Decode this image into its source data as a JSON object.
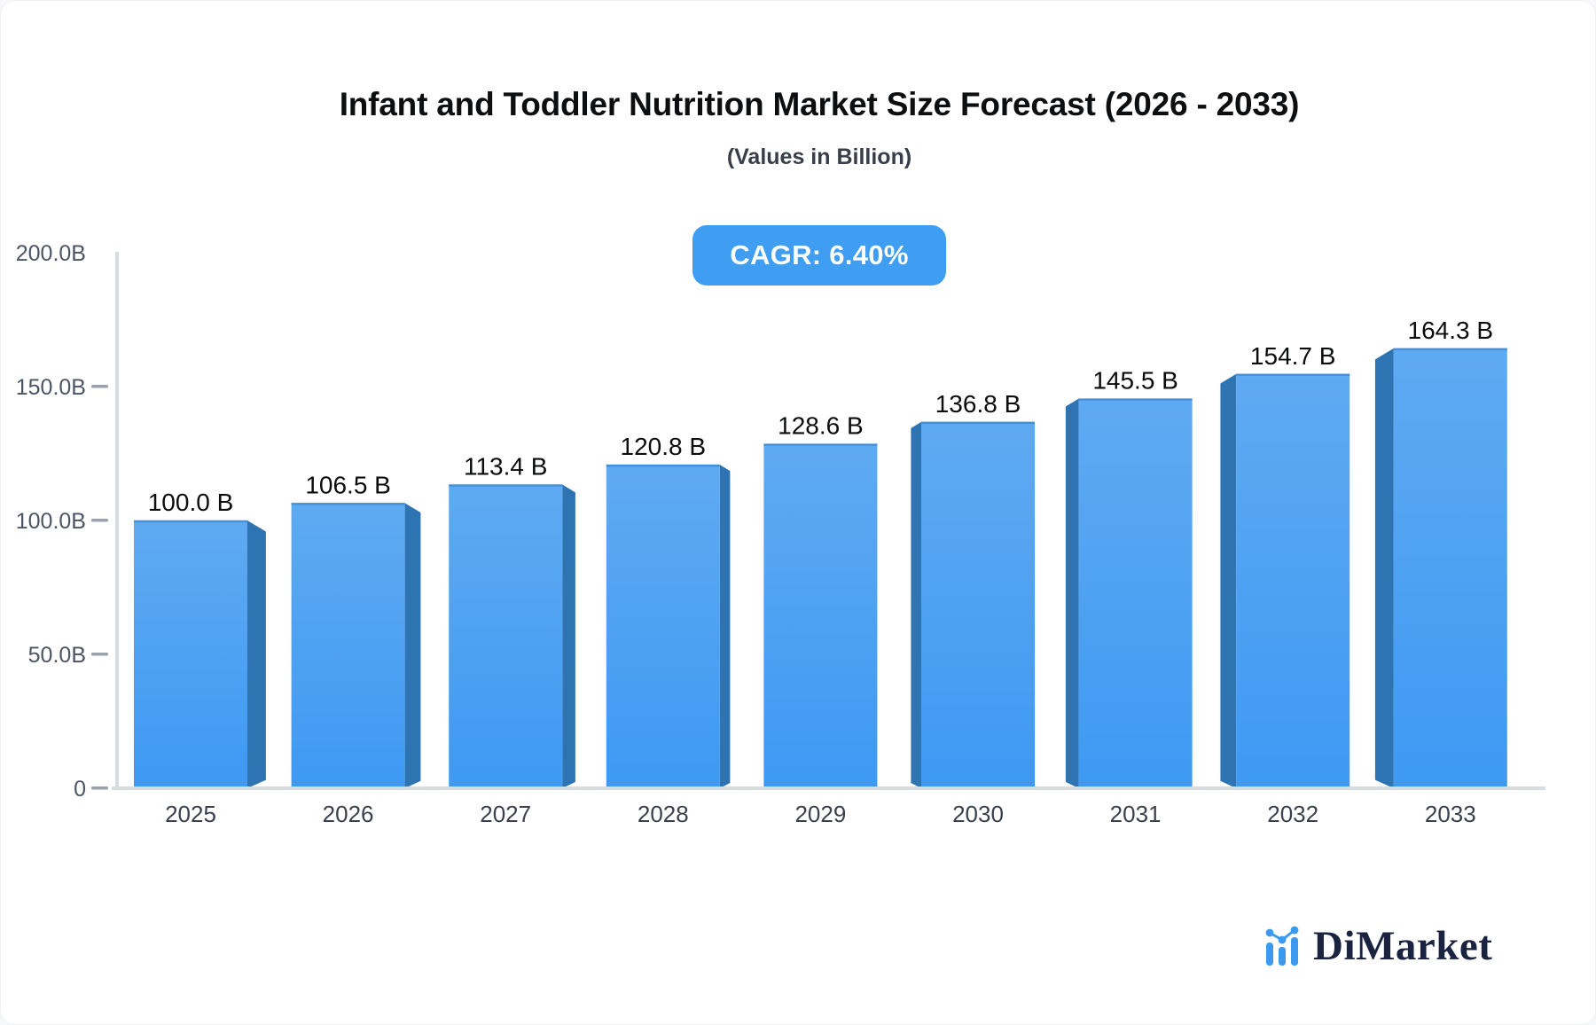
{
  "branding": {
    "name": "DiMarket"
  },
  "colors": {
    "accent": "#3F9EF2",
    "badge_bg": "#3F9EF2",
    "badge_text": "#FFFFFF",
    "bar_face_top": "#5FAAF2",
    "bar_face_bottom": "#3E99F3",
    "bar_side": "#2E74B3",
    "bar_top_edge": "#4690D8",
    "axis_line": "#D8DBE0",
    "tick_mark": "#99A1AB",
    "axis_text": "#4C5564",
    "year_text": "#3A414D",
    "value_text": "#0B0C0E",
    "title_text": "#0D0E10",
    "subtitle_text": "#383F4A",
    "logo_blue": "#3B9AF0",
    "logo_navy": "#1A2441"
  },
  "chart_data": {
    "type": "bar",
    "title": "Infant and Toddler Nutrition Market Size Forecast (2026 - 2033)",
    "subtitle": "(Values in Billion)",
    "cagr_label": "CAGR: 6.40%",
    "unit": "Billion",
    "categories": [
      "2025",
      "2026",
      "2027",
      "2028",
      "2029",
      "2030",
      "2031",
      "2032",
      "2033"
    ],
    "values": [
      100.0,
      106.5,
      113.4,
      120.8,
      128.6,
      136.8,
      145.5,
      154.7,
      164.3
    ],
    "value_labels": [
      "100.0 B",
      "106.5 B",
      "113.4 B",
      "120.8 B",
      "128.6 B",
      "136.8 B",
      "145.5 B",
      "154.7 B",
      "164.3 B"
    ],
    "xlabel": "",
    "ylabel": "",
    "ylim": [
      0,
      200
    ],
    "yticks": [
      {
        "value": 0,
        "label": "0"
      },
      {
        "value": 50,
        "label": "50.0B"
      },
      {
        "value": 100,
        "label": "100.0B"
      },
      {
        "value": 150,
        "label": "150.0B"
      },
      {
        "value": 200,
        "label": "200.0B"
      }
    ],
    "grid": false,
    "legend": null,
    "style": "pseudo-3d-extruded-bars-center-vanishing-point"
  }
}
